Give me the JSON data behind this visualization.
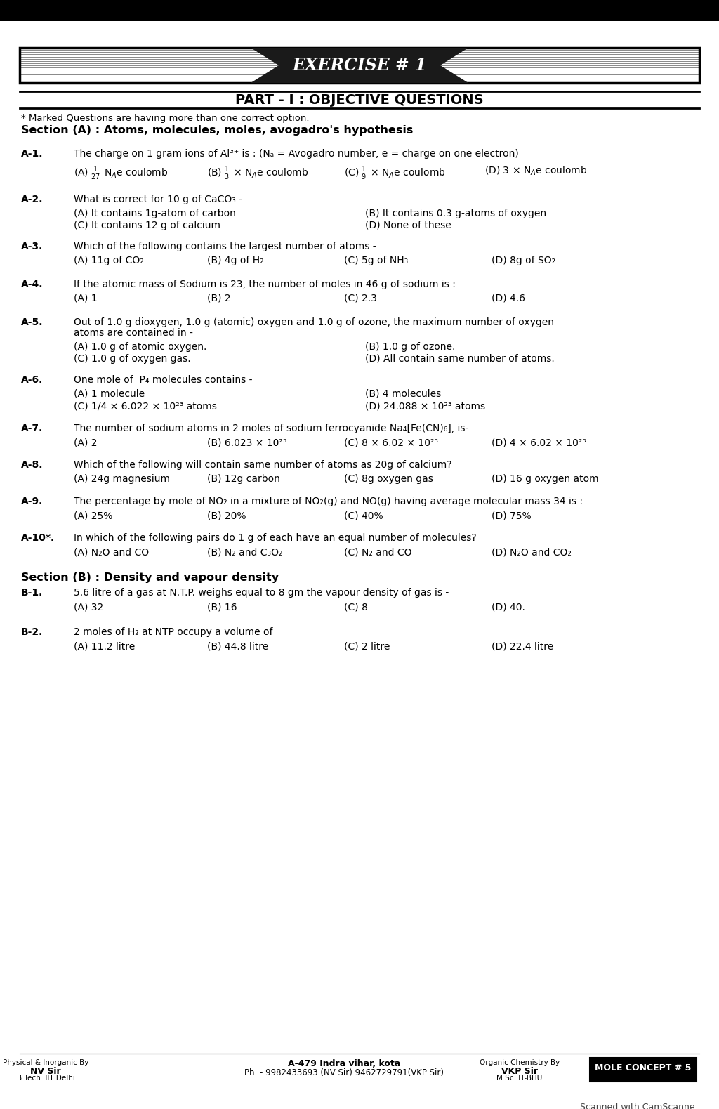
{
  "bg_color": "#ffffff",
  "title_banner": "EXERCISE # 1",
  "part_title": "PART - I : OBJECTIVE QUESTIONS",
  "note": "* Marked Questions are having more than one correct option.",
  "section_a_title": "Section (A) : Atoms, molecules, moles, avogadro's hypothesis",
  "section_b_title": "Section (B) : Density and vapour density",
  "footer_left1": "Physical & Inorganic By",
  "footer_left2": "NV Sir",
  "footer_left3": "B.Tech. IIT Delhi",
  "footer_center1": "A-479 Indra vihar, kota",
  "footer_center2": "Ph. - 9982433693 (NV Sir) 9462729791(VKP Sir)",
  "footer_right1": "Organic Chemistry By",
  "footer_right2": "VKP Sir",
  "footer_right3": "M.Sc. IT-BHU",
  "footer_box": "MOLE CONCEPT # 5",
  "watermark": "Scanned with CamScanne"
}
